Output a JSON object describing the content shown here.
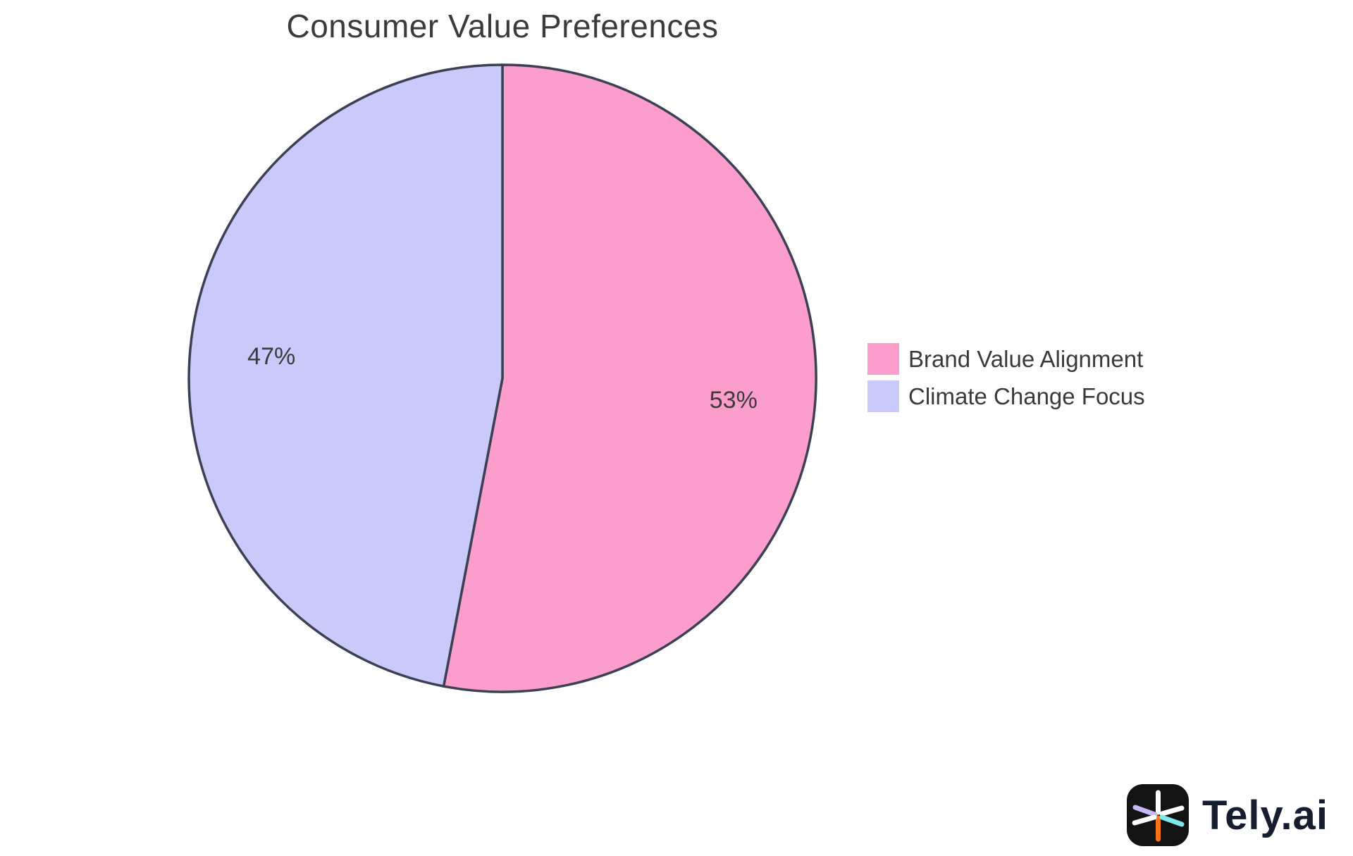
{
  "chart_data": {
    "type": "pie",
    "title": "Consumer Value Preferences",
    "slices": [
      {
        "label": "Brand Value Alignment",
        "value": 53,
        "display_label": "53%",
        "color": "#FC9ECB"
      },
      {
        "label": "Climate Change Focus",
        "value": 47,
        "display_label": "47%",
        "color": "#C9C9FA"
      }
    ],
    "start_angle": "top",
    "direction": "clockwise",
    "outline_color": "#3C4054",
    "value_label_color": "#3B3B3B",
    "legend_position": "right",
    "background": "#FFFFFF"
  },
  "legend": {
    "items": [
      {
        "label": "Brand Value Alignment",
        "color": "#FC9ECB"
      },
      {
        "label": "Climate Change Focus",
        "color": "#C9C9FA"
      }
    ]
  },
  "branding": {
    "wordmark": "Tely.ai",
    "wordmark_color": "#161D2E",
    "icon": "tely-asterisk-icon",
    "icon_background": "#131313",
    "icon_spoke_colors": {
      "top": "#FFFFFF",
      "bottom": "#F9731B",
      "upper_left": "#C9B8F9",
      "lower_left": "#FFFFFF",
      "upper_right": "#FFFFFF",
      "lower_right": "#7FE7EE"
    }
  }
}
